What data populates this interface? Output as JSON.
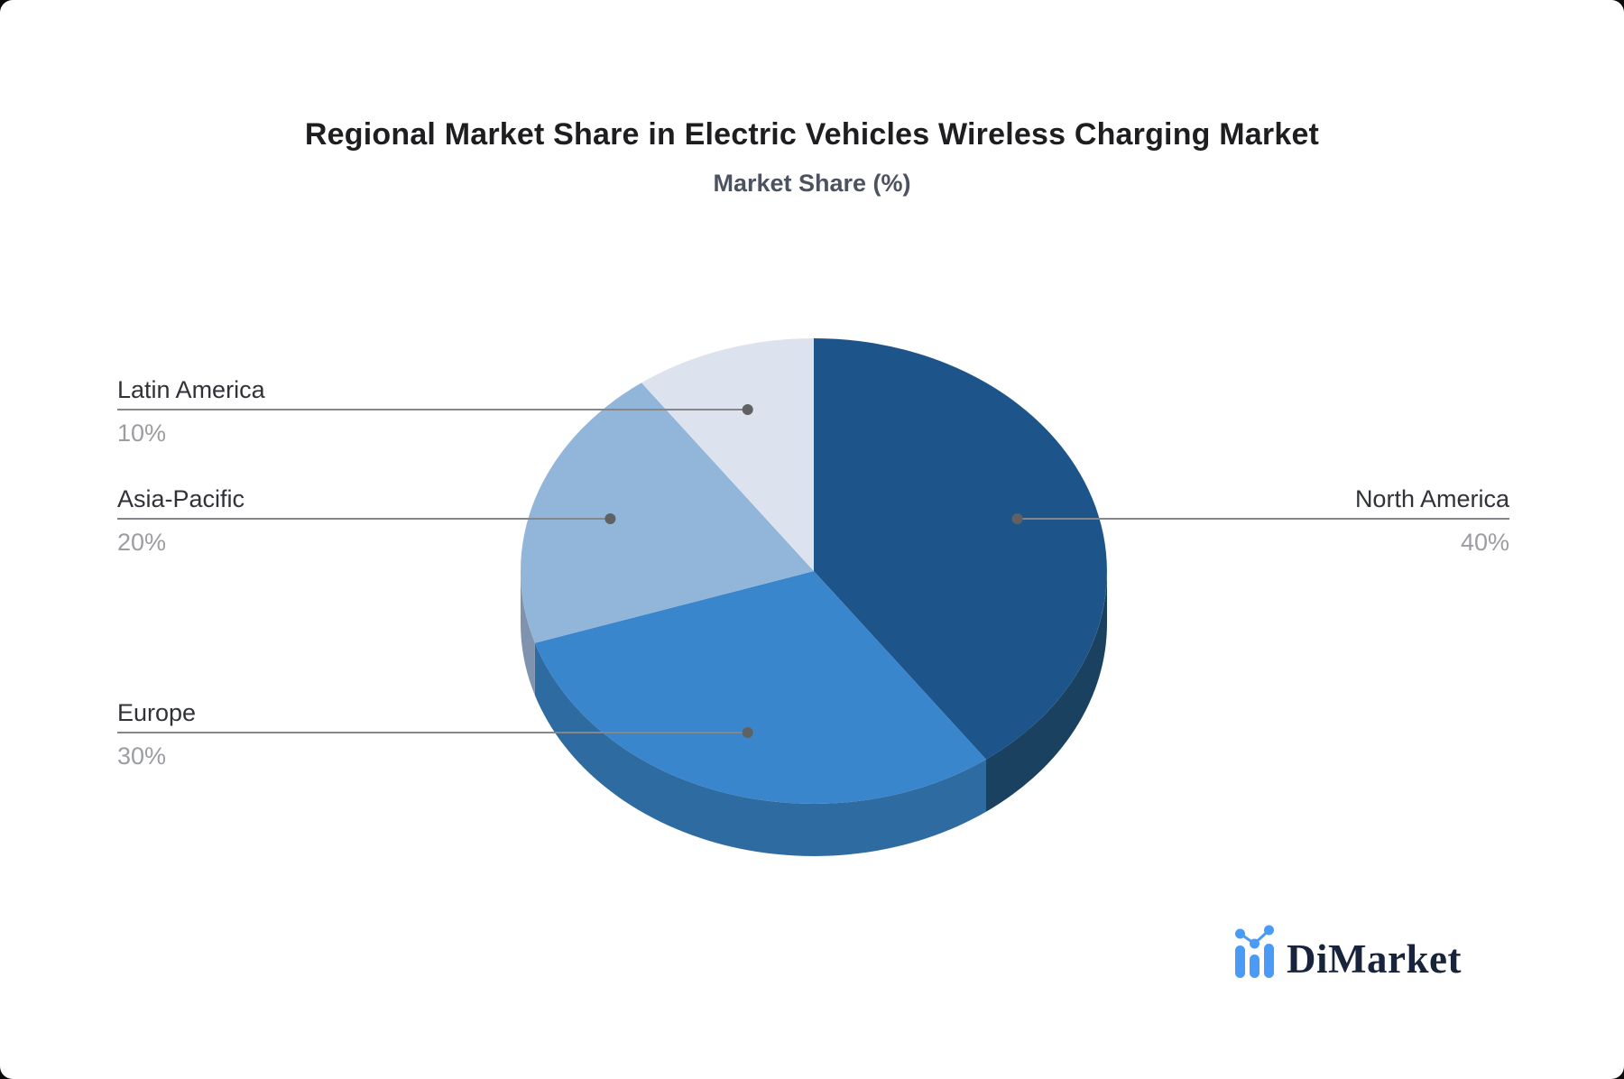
{
  "header": {
    "title": "Regional Market Share in Electric Vehicles Wireless Charging Market",
    "subtitle": "Market Share (%)"
  },
  "chart_data": {
    "type": "pie",
    "style": "3d",
    "title": "Regional Market Share in Electric Vehicles Wireless Charging Market",
    "subtitle": "Market Share (%)",
    "unit": "%",
    "direction": "clockwise",
    "start_angle_deg": 0,
    "legend_position": "none",
    "slices": [
      {
        "label": "North America",
        "value": 40,
        "display_value": "40%",
        "color": "#1d558b",
        "side_color": "#1a4160"
      },
      {
        "label": "Europe",
        "value": 30,
        "display_value": "30%",
        "color": "#3a86cc",
        "side_color": "#2e6ba1"
      },
      {
        "label": "Asia-Pacific",
        "value": 20,
        "display_value": "20%",
        "color": "#92b5da",
        "side_color": "#8093ae"
      },
      {
        "label": "Latin America",
        "value": 10,
        "display_value": "10%",
        "color": "#dde3ee",
        "side_color": "#c6cfdf"
      }
    ],
    "leader_line_color": "#85878a",
    "leader_dot_color": "#5f6163",
    "label_color": "#303237",
    "value_color": "#9b9da1"
  },
  "footer": {
    "logo_text": "DiMarket",
    "logo_icon": "bar-line-chart-icon",
    "logo_icon_color": "#4a9bf5",
    "logo_text_color": "#18233c"
  }
}
